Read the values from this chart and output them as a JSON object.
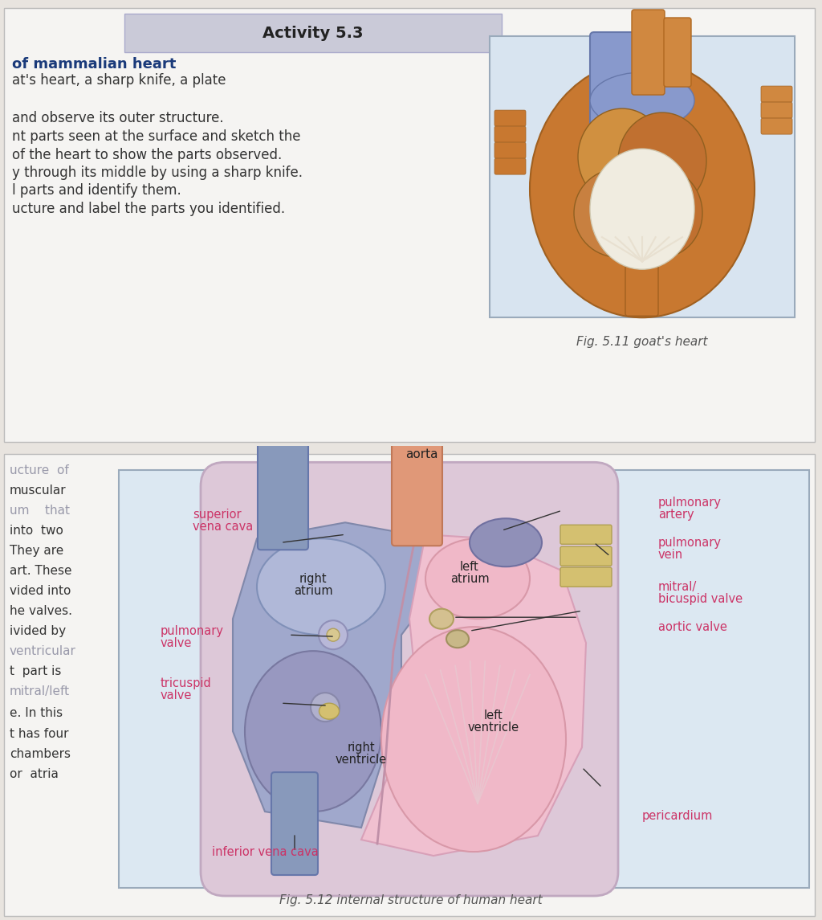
{
  "page_bg": "#e8e4df",
  "top_bg": "#f2f0ee",
  "bot_bg": "#f2f0ee",
  "activity_title": "Activity 5.3",
  "title_bar_color": "#c8c8d8",
  "top_left_lines": [
    {
      "text": "of mammalian heart",
      "bold": true,
      "color": "#1a3a7a",
      "fs": 13
    },
    {
      "text": "at's heart, a sharp knife, a plate",
      "bold": false,
      "color": "#333333",
      "fs": 12
    },
    {
      "text": "",
      "bold": false,
      "color": "#333333",
      "fs": 12
    },
    {
      "text": "and observe its outer structure.",
      "bold": false,
      "color": "#333333",
      "fs": 12
    },
    {
      "text": "nt parts seen at the surface and sketch the",
      "bold": false,
      "color": "#333333",
      "fs": 12
    },
    {
      "text": "of the heart to show the parts observed.",
      "bold": false,
      "color": "#333333",
      "fs": 12
    },
    {
      "text": "y through its middle by using a sharp knife.",
      "bold": false,
      "color": "#333333",
      "fs": 12
    },
    {
      "text": "l parts and identify them.",
      "bold": false,
      "color": "#333333",
      "fs": 12
    },
    {
      "text": "ucture and label the parts you identified.",
      "bold": false,
      "color": "#333333",
      "fs": 12
    }
  ],
  "fig1_caption": "Fig. 5.11 goat's heart",
  "fig2_caption": "Fig. 5.12 internal structure of human heart",
  "caption_color": "#555555",
  "bot_left_lines": [
    {
      "text": "ucture  of",
      "color": "#9999aa"
    },
    {
      "text": "muscular",
      "color": "#333333"
    },
    {
      "text": "um    that",
      "color": "#9999aa"
    },
    {
      "text": "into  two",
      "color": "#333333"
    },
    {
      "text": "They are",
      "color": "#333333"
    },
    {
      "text": "art. These",
      "color": "#333333"
    },
    {
      "text": "vided into",
      "color": "#333333"
    },
    {
      "text": "he valves.",
      "color": "#333333"
    },
    {
      "text": "ivided by",
      "color": "#333333"
    },
    {
      "text": "ventricular",
      "color": "#9999aa"
    },
    {
      "text": "t  part is",
      "color": "#333333"
    },
    {
      "text": "mitral/left",
      "color": "#9999aa"
    },
    {
      "text": "e. In this",
      "color": "#333333"
    },
    {
      "text": "t has four",
      "color": "#333333"
    },
    {
      "text": "chambers",
      "color": "#333333"
    },
    {
      "text": "or  atria",
      "color": "#333333"
    }
  ],
  "label_color_dark": "#222222",
  "label_color_pink": "#cc3366"
}
